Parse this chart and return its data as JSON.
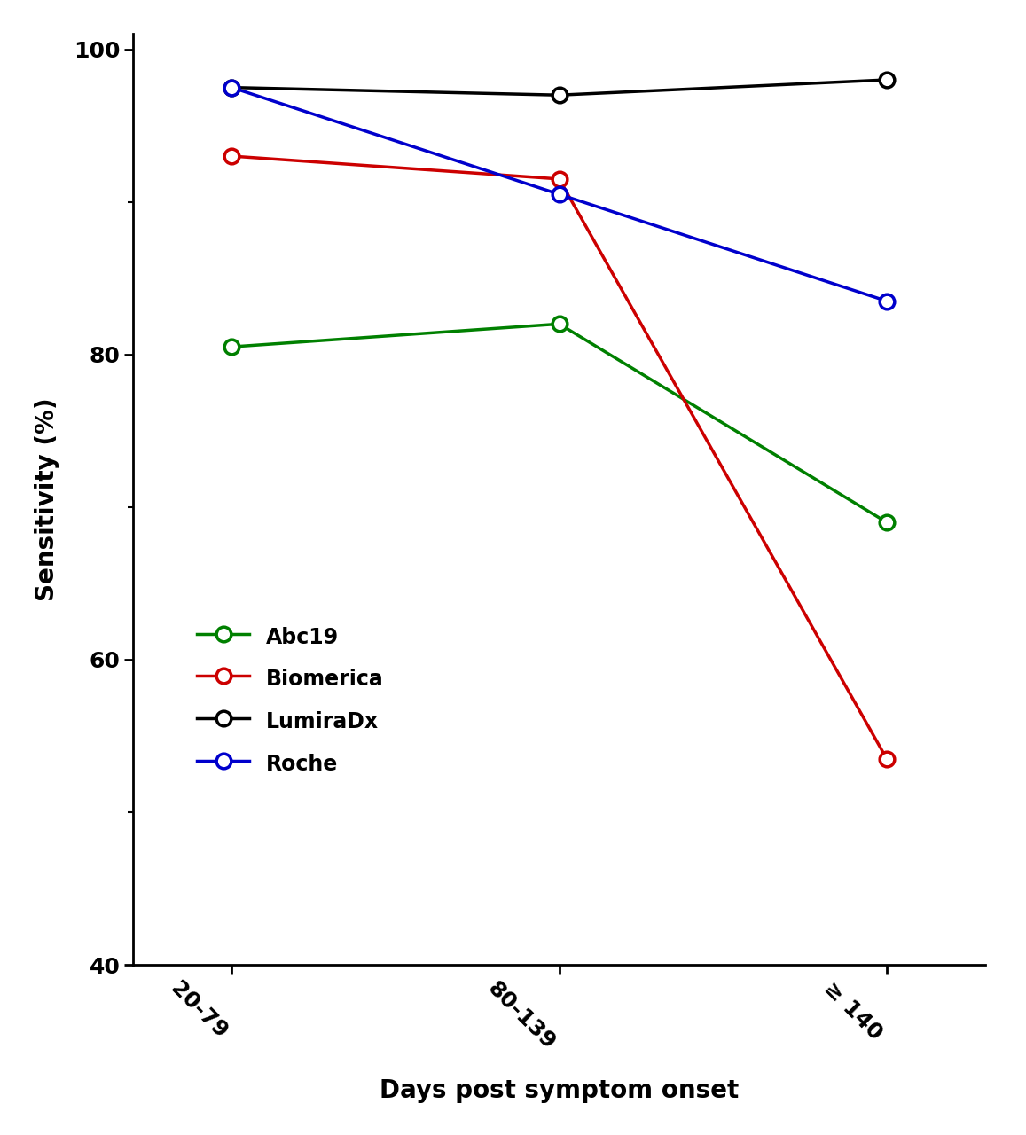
{
  "series": [
    {
      "name": "Abc19",
      "color": "#008000",
      "values": [
        80.5,
        82.0,
        69.0
      ]
    },
    {
      "name": "Biomerica",
      "color": "#cc0000",
      "values": [
        93.0,
        91.5,
        53.5
      ]
    },
    {
      "name": "LumiraDx",
      "color": "#000000",
      "values": [
        97.5,
        97.0,
        98.0
      ]
    },
    {
      "name": "Roche",
      "color": "#0000cc",
      "values": [
        97.5,
        90.5,
        83.5
      ]
    }
  ],
  "x_labels": [
    "20-79",
    "80-139",
    "≥ 140"
  ],
  "x_label_rotation": -45,
  "ylabel": "Sensitivity (%)",
  "xlabel": "Days post symptom onset",
  "ylim": [
    40,
    101
  ],
  "yticks": [
    40,
    60,
    80,
    100
  ],
  "marker_size": 12,
  "line_width": 2.5,
  "background_color": "#ffffff",
  "label_fontsize": 20,
  "tick_fontsize": 18,
  "legend_fontsize": 17
}
